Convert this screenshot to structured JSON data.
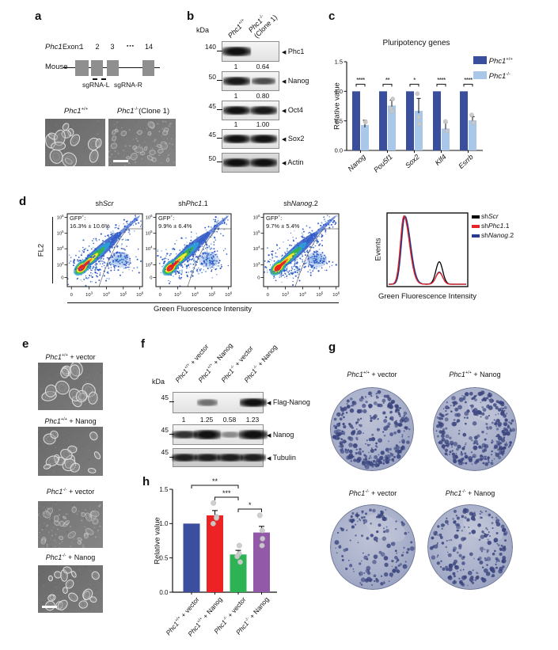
{
  "icons": {
    "band_arrow": "◀"
  },
  "panel_a": {
    "label": "a",
    "diagram": {
      "gene": [
        {
          "t": "Phc1",
          "i": 1
        }
      ],
      "exon_label": "Exon:",
      "exon_numbers": [
        "1",
        "2",
        "3"
      ],
      "ellipsis": "▪▪▪",
      "last_exon": "14",
      "species": "Mouse",
      "sgrna_left": "sgRNA-L",
      "sgrna_right": "sgRNA-R"
    },
    "images": [
      {
        "label": [
          {
            "t": "Phc1",
            "i": 1
          },
          {
            "t": "+/+",
            "sup": 1
          }
        ],
        "type": "wt",
        "seed": 3
      },
      {
        "label": [
          {
            "t": "Phc1",
            "i": 1
          },
          {
            "t": "-/-",
            "sup": 1
          },
          {
            "t": "(Clone 1)"
          }
        ],
        "type": "ko",
        "seed": 8
      }
    ]
  },
  "panel_b": {
    "label": "b",
    "kda_unit": "kDa",
    "lanes": [
      [
        {
          "t": "Phc1",
          "i": 1
        },
        {
          "t": "+/+",
          "sup": 1
        }
      ],
      [
        {
          "t": "Phc1",
          "i": 1
        },
        {
          "t": "-/-",
          "sup": 1
        },
        {
          "br": 1
        },
        {
          "t": "(Clone 1)"
        }
      ]
    ],
    "blots": [
      {
        "kda": "140",
        "protein": "Phc1",
        "bands": [
          1.15,
          0
        ]
      },
      {
        "kda": "50",
        "protein": "Nanog",
        "values": [
          "1",
          "0.64"
        ],
        "bands": [
          0.95,
          0.65
        ]
      },
      {
        "kda": "45",
        "protein": "Oct4",
        "values": [
          "1",
          "0.80"
        ],
        "bands": [
          1.05,
          0.95
        ]
      },
      {
        "kda": "45",
        "protein": "Sox2",
        "values": [
          "1",
          "1.00"
        ],
        "bands": [
          1.05,
          1.05
        ]
      },
      {
        "kda": "50",
        "protein": "Actin",
        "bands": [
          1,
          1
        ]
      }
    ]
  },
  "panel_c": {
    "label": "c",
    "chart_data": {
      "type": "bar",
      "title": "Pluripotency genes",
      "ylabel": "Relative value",
      "ylim": [
        0,
        1.5
      ],
      "yticks": [
        "0.0",
        "0.5",
        "1.0",
        "1.5"
      ],
      "categories": [
        "Nanog",
        "Pou5f1",
        "Sox2",
        "Klf4",
        "Esrrb"
      ],
      "series": [
        {
          "name": "Phc1+/+",
          "color": "#3a4e9e",
          "values": [
            1,
            1,
            1,
            1,
            1
          ]
        },
        {
          "name": "Phc1-/-",
          "color": "#a9c7e9",
          "values": [
            0.43,
            0.76,
            0.67,
            0.37,
            0.51
          ],
          "errors": [
            0.08,
            0.09,
            0.21,
            0.1,
            0.06
          ],
          "points": [
            [
              0.48
            ],
            [
              0.87,
              0.71,
              0.66
            ],
            [
              0.96,
              0.56,
              0.45
            ],
            [
              0.49,
              0.33
            ],
            [
              0.6,
              0.47
            ]
          ]
        }
      ],
      "significance": [
        "****",
        "**",
        "*",
        "****",
        "****"
      ],
      "legend_position": "right"
    },
    "categories_rich": [
      [
        {
          "t": "Nanog",
          "i": 1
        }
      ],
      [
        {
          "t": "Pou5f1",
          "i": 1
        }
      ],
      [
        {
          "t": "Sox2",
          "i": 1
        }
      ],
      [
        {
          "t": "Klf4",
          "i": 1
        }
      ],
      [
        {
          "t": "Esrrb",
          "i": 1
        }
      ]
    ],
    "legend": [
      {
        "swatch": "#3a4e9e",
        "label": [
          {
            "t": "Phc1",
            "i": 1
          },
          {
            "t": "+/+",
            "sup": 1
          }
        ]
      },
      {
        "swatch": "#a9c7e9",
        "label": [
          {
            "t": "Phc1",
            "i": 1
          },
          {
            "t": "-/-",
            "sup": 1
          }
        ]
      }
    ]
  },
  "panel_d": {
    "label": "d",
    "flow_ylabel": "FL2",
    "flow_xlabel": "Green Fluorescence Intensity",
    "flow_yticks": [
      [
        "10",
        "6"
      ],
      [
        "10",
        "5"
      ],
      [
        "10",
        "4"
      ],
      [
        "10",
        "3"
      ],
      [
        "0",
        ""
      ]
    ],
    "flow_xticks": [
      [
        "0",
        ""
      ],
      [
        "10",
        "3"
      ],
      [
        "10",
        "4"
      ],
      [
        "10",
        "5"
      ],
      [
        "10",
        "6"
      ]
    ],
    "plots": [
      {
        "title": [
          {
            "t": "sh"
          },
          {
            "t": "Scr",
            "i": 1
          }
        ],
        "gfp_label": [
          {
            "t": "GFP"
          },
          {
            "t": "+",
            "sup": 1
          },
          {
            "t": ":"
          }
        ],
        "gfp_value": "16.3% ± 10.6%",
        "seed": 7
      },
      {
        "title": [
          {
            "t": "sh"
          },
          {
            "t": "Phc1",
            "i": 1
          },
          {
            "t": ".1"
          }
        ],
        "gfp_label": [
          {
            "t": "GFP"
          },
          {
            "t": "+",
            "sup": 1
          },
          {
            "t": ":"
          }
        ],
        "gfp_value": "9.9% ± 6.4%",
        "seed": 13
      },
      {
        "title": [
          {
            "t": "sh"
          },
          {
            "t": "Nanog",
            "i": 1
          },
          {
            "t": ".2"
          }
        ],
        "gfp_label": [
          {
            "t": "GFP"
          },
          {
            "t": "+",
            "sup": 1
          },
          {
            "t": ":"
          }
        ],
        "gfp_value": "9.7% ± 5.4%",
        "seed": 29
      }
    ],
    "histogram": {
      "ylabel": "Events",
      "xlabel": "Green Fluorescence Intensity",
      "series": [
        {
          "label": [
            {
              "t": "sh"
            },
            {
              "t": "Scr",
              "i": 1
            }
          ],
          "color": "#000000",
          "peak2_height": 0.33
        },
        {
          "label": [
            {
              "t": "sh"
            },
            {
              "t": "Phc1",
              "i": 1
            },
            {
              "t": ".1"
            }
          ],
          "color": "#e8252a",
          "peak2_height": 0.17
        },
        {
          "label": [
            {
              "t": "sh"
            },
            {
              "t": "Nanog",
              "i": 1
            },
            {
              "t": ".2"
            }
          ],
          "color": "#2b3990",
          "peak2_height": 0.18
        }
      ]
    }
  },
  "panel_e": {
    "label": "e",
    "images": [
      {
        "label": [
          {
            "t": "Phc1",
            "i": 1
          },
          {
            "t": "+/+",
            "sup": 1
          },
          {
            "t": " + vector"
          }
        ],
        "type": "wt",
        "seed": 21
      },
      {
        "label": [
          {
            "t": "Phc1",
            "i": 1
          },
          {
            "t": "+/+",
            "sup": 1
          },
          {
            "t": " + Nanog"
          }
        ],
        "type": "wt",
        "seed": 22
      },
      {
        "label": [
          {
            "t": "Phc1",
            "i": 1
          },
          {
            "t": "-/-",
            "sup": 1
          },
          {
            "t": " + vector"
          }
        ],
        "type": "ko",
        "seed": 23
      },
      {
        "label": [
          {
            "t": "Phc1",
            "i": 1
          },
          {
            "t": "-/-",
            "sup": 1
          },
          {
            "t": " + Nanog"
          }
        ],
        "type": "wt2",
        "seed": 24
      }
    ]
  },
  "panel_f": {
    "label": "f",
    "kda_unit": "kDa",
    "lanes": [
      [
        {
          "t": "Phc1",
          "i": 1
        },
        {
          "t": "+/+",
          "sup": 1
        },
        {
          "t": " + vector"
        }
      ],
      [
        {
          "t": "Phc1",
          "i": 1
        },
        {
          "t": "+/+",
          "sup": 1
        },
        {
          "t": " + Nanog"
        }
      ],
      [
        {
          "t": "Phc1",
          "i": 1
        },
        {
          "t": "-/-",
          "sup": 1
        },
        {
          "t": " + vector"
        }
      ],
      [
        {
          "t": "Phc1",
          "i": 1
        },
        {
          "t": "-/-",
          "sup": 1
        },
        {
          "t": " + Nanog"
        }
      ]
    ],
    "blots": [
      {
        "kda": "45",
        "protein": "Flag-Nanog",
        "bands": [
          0,
          0.45,
          0,
          1.05
        ]
      },
      {
        "kda": "45",
        "protein": "Nanog",
        "values": [
          "1",
          "1.25",
          "0.58",
          "1.23"
        ],
        "bands": [
          0.8,
          1.05,
          0.3,
          1.1
        ]
      },
      {
        "kda": "45",
        "protein": "Tubulin",
        "bands": [
          0.9,
          0.9,
          0.9,
          0.9
        ]
      }
    ]
  },
  "panel_g": {
    "label": "g",
    "plates": [
      {
        "label": [
          {
            "t": "Phc1",
            "i": 1
          },
          {
            "t": "+/+",
            "sup": 1
          },
          {
            "t": " + vector"
          }
        ],
        "density": 235,
        "seed": 41
      },
      {
        "label": [
          {
            "t": "Phc1",
            "i": 1
          },
          {
            "t": "+/+",
            "sup": 1
          },
          {
            "t": " + Nanog"
          }
        ],
        "density": 245,
        "seed": 43
      },
      {
        "label": [
          {
            "t": "Phc1",
            "i": 1
          },
          {
            "t": "-/-",
            "sup": 1
          },
          {
            "t": " + vector"
          }
        ],
        "density": 120,
        "seed": 47
      },
      {
        "label": [
          {
            "t": "Phc1",
            "i": 1
          },
          {
            "t": "-/-",
            "sup": 1
          },
          {
            "t": " + Nanog"
          }
        ],
        "density": 170,
        "seed": 53
      }
    ]
  },
  "panel_h": {
    "label": "h",
    "chart_data": {
      "type": "bar",
      "ylabel": "Relative value",
      "ylim": [
        0,
        1.5
      ],
      "yticks": [
        "0.0",
        "0.5",
        "1.0",
        "1.5"
      ],
      "categories": [
        "Phc1+/+ + vector",
        "Phc1+/+ + Nanog",
        "Phc1-/- + vector",
        "Phc1-/- + Nanog"
      ],
      "values": [
        1.0,
        1.12,
        0.55,
        0.87
      ],
      "errors": [
        0,
        0.07,
        0.06,
        0.09
      ],
      "bar_colors": [
        "#3b4f9e",
        "#ed2224",
        "#2eb354",
        "#9159a8"
      ],
      "points": [
        [],
        [
          1.3,
          1.1,
          1.0,
          1.08
        ],
        [
          0.68,
          0.56,
          0.52,
          0.44
        ],
        [
          1.12,
          0.9,
          0.78,
          0.68
        ]
      ],
      "significance": [
        {
          "from": 0,
          "to": 2,
          "stars": "**"
        },
        {
          "from": 1,
          "to": 2,
          "stars": "***"
        },
        {
          "from": 2,
          "to": 3,
          "stars": "*"
        }
      ]
    },
    "categories_rich": [
      [
        {
          "t": "Phc1",
          "i": 1
        },
        {
          "t": "+/+",
          "sup": 1
        },
        {
          "t": " + vector"
        }
      ],
      [
        {
          "t": "Phc1",
          "i": 1
        },
        {
          "t": "+/+",
          "sup": 1
        },
        {
          "t": " + Nanog"
        }
      ],
      [
        {
          "t": "Phc1",
          "i": 1
        },
        {
          "t": "-/-",
          "sup": 1
        },
        {
          "t": " + vector"
        }
      ],
      [
        {
          "t": "Phc1",
          "i": 1
        },
        {
          "t": "-/-",
          "sup": 1
        },
        {
          "t": " + Nanog"
        }
      ]
    ]
  }
}
